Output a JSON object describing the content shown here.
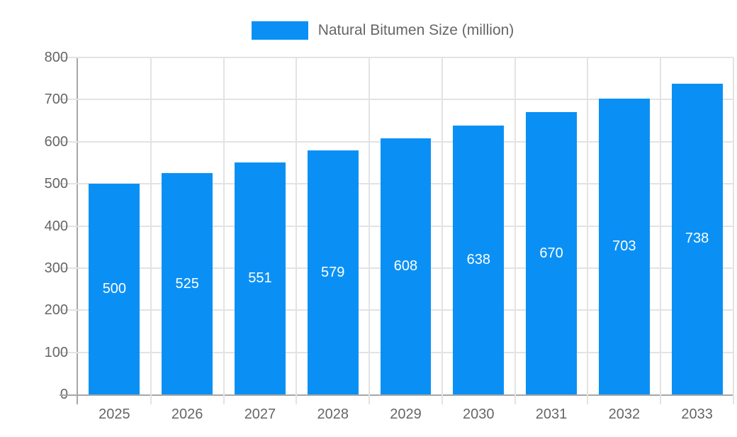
{
  "chart_data": {
    "type": "bar",
    "title": "Natural Bitumen Size (million)",
    "legend": {
      "label": "Natural Bitumen Size (million)",
      "position": "top"
    },
    "categories": [
      "2025",
      "2026",
      "2027",
      "2028",
      "2029",
      "2030",
      "2031",
      "2032",
      "2033"
    ],
    "values": [
      500,
      525,
      551,
      579,
      608,
      638,
      670,
      703,
      738
    ],
    "xlabel": "",
    "ylabel": "",
    "ylim": [
      0,
      800
    ],
    "ytick_step": 100,
    "grid": true,
    "bar_labels_inside": true,
    "colors": {
      "bar": "#0A90F5",
      "bar_label": "#FFFFFF",
      "axis": "#A6A6A6",
      "grid": "#E3E3E3",
      "text": "#666666",
      "background": "#FFFFFF"
    }
  }
}
